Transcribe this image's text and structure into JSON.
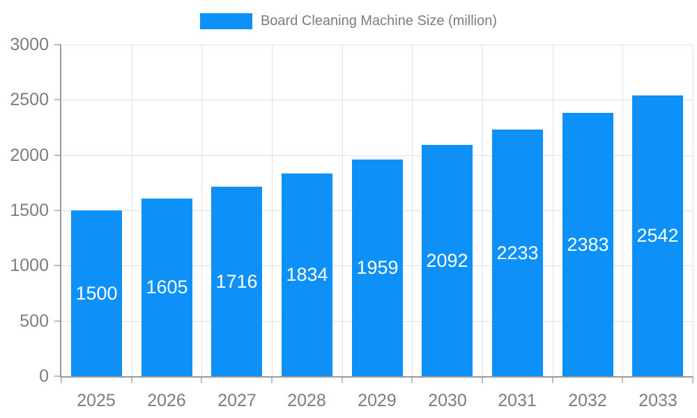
{
  "legend": {
    "label": "Board Cleaning Machine Size (million)"
  },
  "chart_data": {
    "type": "bar",
    "title": "Board Cleaning Machine Size (million)",
    "categories": [
      "2025",
      "2026",
      "2027",
      "2028",
      "2029",
      "2030",
      "2031",
      "2032",
      "2033"
    ],
    "values": [
      1500,
      1605,
      1716,
      1834,
      1959,
      2092,
      2233,
      2383,
      2542
    ],
    "xlabel": "",
    "ylabel": "",
    "ylim": [
      0,
      3000
    ],
    "yticks": [
      0,
      500,
      1000,
      1500,
      2000,
      2500,
      3000
    ],
    "grid": true,
    "legend_position": "top",
    "value_labels_inside_bars": true
  },
  "colors": {
    "bar": "#0d91f8",
    "grid": "#e2e2e2",
    "axis": "#9b9b9b",
    "tick": "#bdbdbd",
    "tick_text": "#7d7d7d",
    "legend_text": "#7d7d7d",
    "value_text": "#ffffff",
    "background": "#ffffff"
  }
}
